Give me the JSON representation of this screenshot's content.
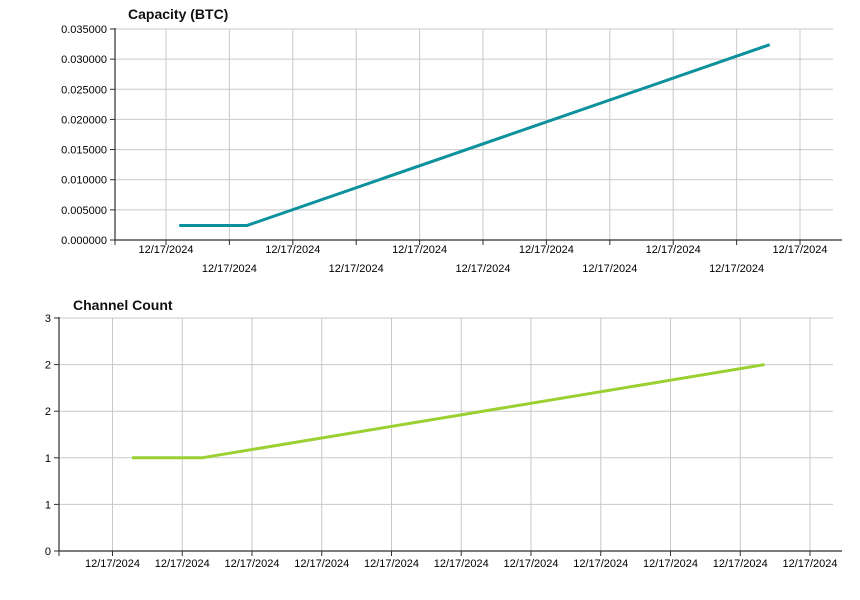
{
  "chart_data": [
    {
      "type": "line",
      "title": "Capacity (BTC)",
      "series_name": "capacity",
      "line_color": "#0d919d",
      "grid_on": true,
      "legend": "none",
      "y_axis": {
        "min": 0,
        "max": 0.035,
        "interval": 0.005,
        "tick_labels_top_to_bottom": [
          "0.035000",
          "0.030000",
          "0.025000",
          "0.020000",
          "0.015000",
          "0.010000",
          "0.005000",
          "0.000000"
        ]
      },
      "x_axis": {
        "staggered_labels": true,
        "tick_labels": [
          "12/17/2024",
          "12/17/2024",
          "12/17/2024",
          "12/17/2024",
          "12/17/2024",
          "12/17/2024",
          "12/17/2024",
          "12/17/2024",
          "12/17/2024",
          "12/17/2024",
          "12/17/2024"
        ]
      },
      "points": [
        {
          "x_label": "12/17/2024",
          "x_fraction": 0.089,
          "value": 0.0024
        },
        {
          "x_label": "12/17/2024",
          "x_fraction": 0.183,
          "value": 0.0024
        },
        {
          "x_label": "12/17/2024",
          "x_fraction": 0.908,
          "value": 0.0324
        }
      ]
    },
    {
      "type": "line",
      "title": "Channel Count",
      "series_name": "channel-count",
      "line_color": "#9ad032",
      "grid_on": true,
      "legend": "none",
      "y_axis": {
        "min": 0,
        "max": 2.5,
        "interval": 0.5,
        "tick_labels_top_to_bottom": [
          "3",
          "2",
          "2",
          "1",
          "1",
          "0"
        ]
      },
      "x_axis": {
        "staggered_labels": false,
        "tick_labels": [
          "12/17/2024",
          "12/17/2024",
          "12/17/2024",
          "12/17/2024",
          "12/17/2024",
          "12/17/2024",
          "12/17/2024",
          "12/17/2024",
          "12/17/2024",
          "12/17/2024",
          "12/17/2024"
        ]
      },
      "points": [
        {
          "x_label": "12/17/2024",
          "x_fraction": 0.094,
          "value": 1
        },
        {
          "x_label": "12/17/2024",
          "x_fraction": 0.184,
          "value": 1
        },
        {
          "x_label": "12/17/2024",
          "x_fraction": 0.908,
          "value": 2
        }
      ]
    }
  ],
  "colors": {
    "background": "#ffffff",
    "gridline": "#c9c9c9",
    "axis": "#2f2f2f",
    "tick_label": "#000000",
    "capacity_line": "#0d919d",
    "channel_count_line": "#9ad032"
  }
}
